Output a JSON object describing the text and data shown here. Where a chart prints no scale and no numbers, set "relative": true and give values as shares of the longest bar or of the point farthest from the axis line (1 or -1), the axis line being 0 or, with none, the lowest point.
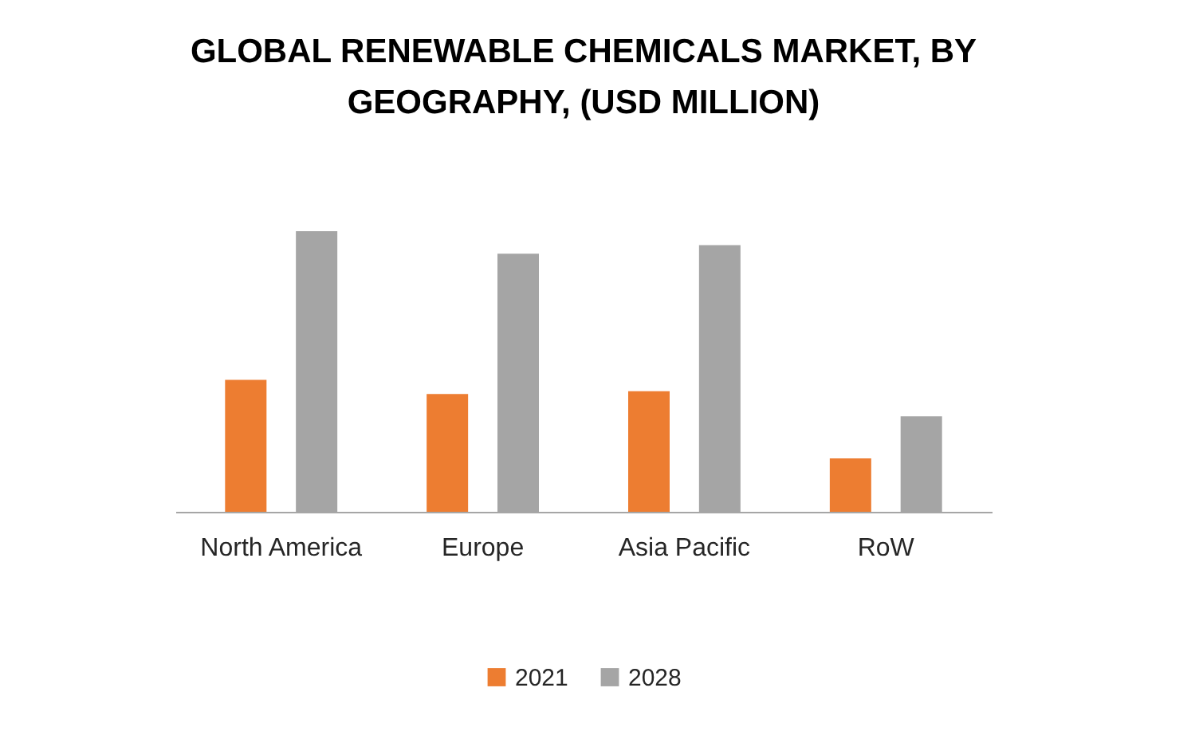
{
  "chart_data": {
    "type": "bar",
    "title": "GLOBAL RENEWABLE CHEMICALS MARKET, BY GEOGRAPHY, (USD MILLION)",
    "categories": [
      "North America",
      "Europe",
      "Asia Pacific",
      "RoW"
    ],
    "relative": true,
    "series": [
      {
        "name": "2021",
        "color": "#ed7d31",
        "values": [
          0.47,
          0.42,
          0.43,
          0.19
        ]
      },
      {
        "name": "2028",
        "color": "#a5a5a5",
        "values": [
          1,
          0.92,
          0.95,
          0.34
        ]
      }
    ],
    "legend": "bottom"
  }
}
